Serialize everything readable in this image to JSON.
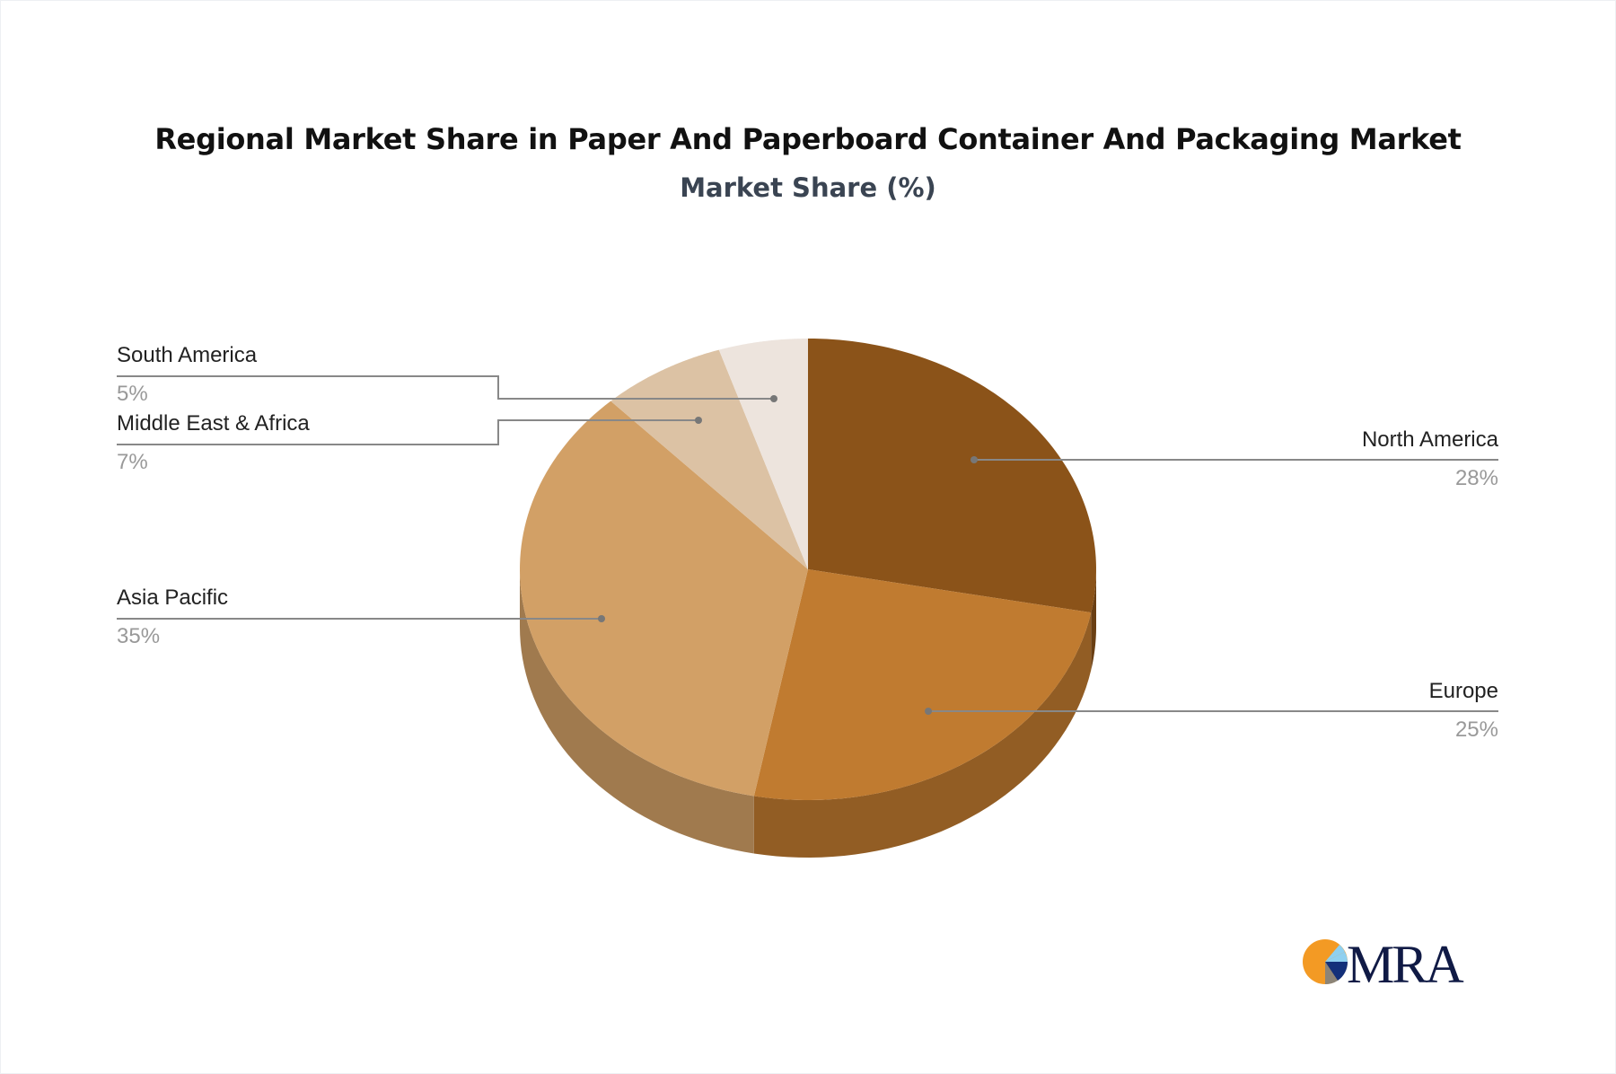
{
  "chart_data": {
    "type": "pie",
    "title": "Regional Market Share in Paper And Paperboard Container And Packaging Market",
    "subtitle": "Market Share (%)",
    "categories": [
      "North America",
      "Europe",
      "Asia Pacific",
      "Middle East & Africa",
      "South America"
    ],
    "values": [
      28,
      25,
      35,
      7,
      5
    ],
    "labels": [
      "28%",
      "25%",
      "35%",
      "7%",
      "5%"
    ],
    "colors": [
      "#8B5319",
      "#C07B30",
      "#D2A066",
      "#DCC2A4",
      "#EDE4DD"
    ],
    "style": "3d-pie",
    "legend": "none"
  },
  "logo": {
    "text": "MRA"
  }
}
